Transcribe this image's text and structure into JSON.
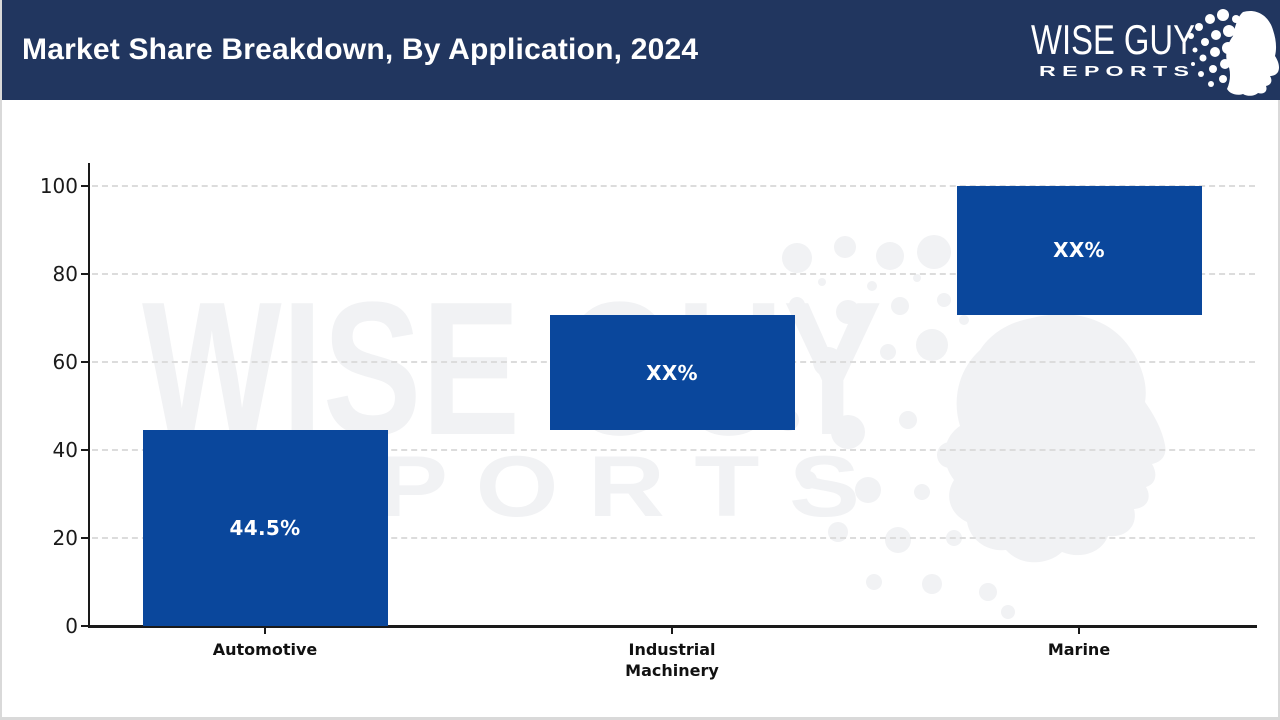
{
  "header": {
    "title": "Market Share Breakdown, By Application, 2024",
    "bg_color": "#21365f",
    "logo": {
      "line1": "WISE GUY",
      "line2": "R E P O R T S",
      "head_icon": "dotted-head-profile"
    }
  },
  "watermark": {
    "line1": "WISE GUY",
    "line2": "R E P O R T S",
    "head_icon": "dotted-head-profile",
    "color": "#f1f2f4"
  },
  "chart_data": {
    "type": "bar",
    "subtype": "waterfall",
    "title": "Market Share Breakdown, By Application, 2024",
    "xlabel": "",
    "ylabel": "",
    "categories": [
      "Automotive",
      "Industrial Machinery",
      "Marine"
    ],
    "category_lines": [
      [
        "Automotive"
      ],
      [
        "Industrial",
        "Machinery"
      ],
      [
        "Marine"
      ]
    ],
    "segments": [
      {
        "label": "Automotive",
        "start": 0,
        "end": 44.5,
        "value_label": "44.5%"
      },
      {
        "label": "Industrial Machinery",
        "start": 44.5,
        "end": 70.5,
        "value_label": "XX%"
      },
      {
        "label": "Marine",
        "start": 70.5,
        "end": 100,
        "value_label": "XX%"
      }
    ],
    "y_ticks": [
      0,
      20,
      40,
      60,
      80,
      100
    ],
    "ylim": [
      0,
      105
    ],
    "grid": "horizontal dashed",
    "legend": "none",
    "bar_color": "#0a479c",
    "grid_color": "#dcdcdc",
    "axis_color": "#1a1a1a"
  }
}
